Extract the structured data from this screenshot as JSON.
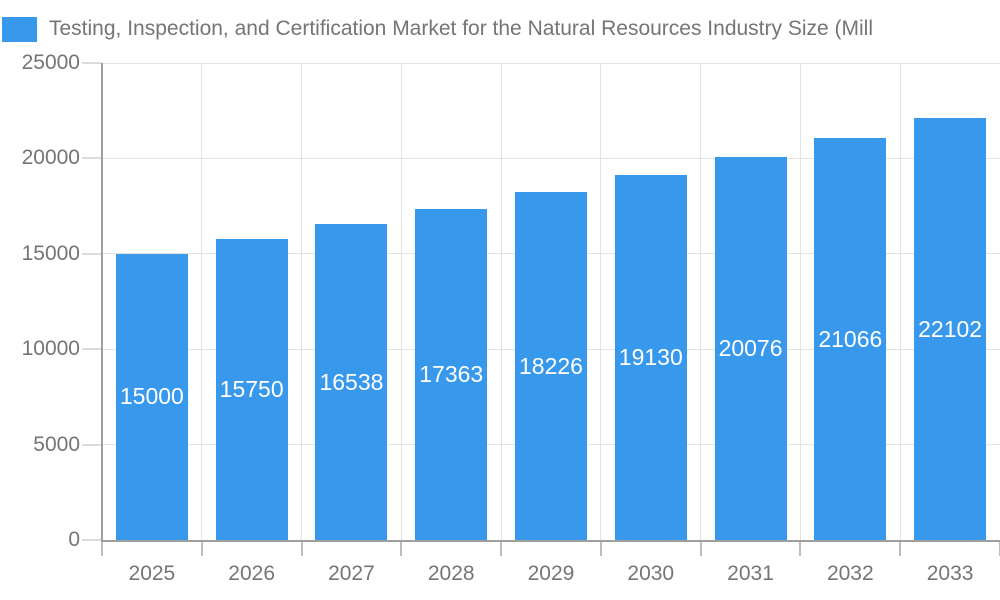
{
  "legend": {
    "swatch_icon": "series-color-swatch",
    "label": "Testing, Inspection, and Certification Market for the Natural Resources Industry Size (Mill"
  },
  "chart_data": {
    "type": "bar",
    "title": "Testing, Inspection, and Certification Market for the Natural Resources Industry Size (Mill",
    "categories": [
      "2025",
      "2026",
      "2027",
      "2028",
      "2029",
      "2030",
      "2031",
      "2032",
      "2033"
    ],
    "values": [
      15000,
      15750,
      16538,
      17363,
      18226,
      19130,
      20076,
      21066,
      22102
    ],
    "data_labels": [
      "15000",
      "15750",
      "16538",
      "17363",
      "18226",
      "19130",
      "20076",
      "21066",
      "22102"
    ],
    "xlabel": "",
    "ylabel": "",
    "ylim": [
      0,
      25000
    ],
    "yticks": [
      0,
      5000,
      10000,
      15000,
      20000,
      25000
    ],
    "grid": true,
    "legend_position": "top-left",
    "style": {
      "bar_color": "#3898ec",
      "data_label_color": "#ffffff",
      "axis_text_color": "#757575",
      "grid_color": "#e3e3e3",
      "axis_line_color": "#9e9e9e",
      "y_tick_color": "#dcdcdc",
      "x_tick_color": "#bdbdbd",
      "background_color": "#ffffff"
    }
  }
}
